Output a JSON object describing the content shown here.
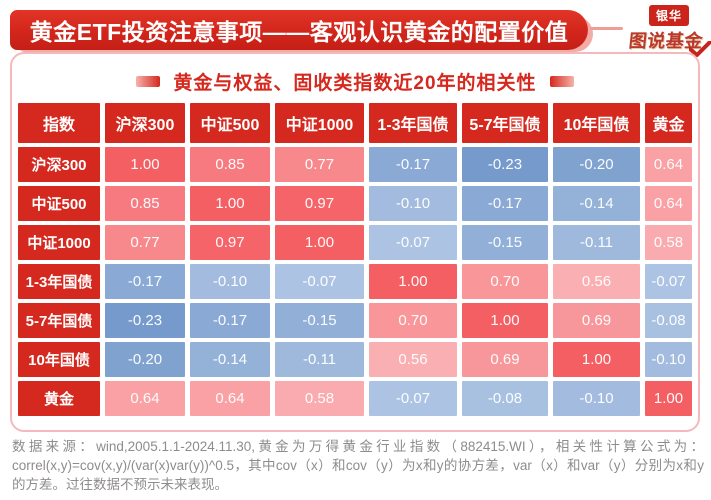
{
  "header": {
    "title": "黄金ETF投资注意事项——客观认识黄金的配置价值",
    "logo": {
      "badge": "银华",
      "name": "图说基金"
    }
  },
  "subtitle": "黄金与权益、固收类指数近20年的相关性",
  "table": {
    "columns": [
      "指数",
      "沪深300",
      "中证500",
      "中证1000",
      "1-3年国债",
      "5-7年国债",
      "10年国债",
      "黄金"
    ],
    "rows": [
      {
        "label": "沪深300",
        "values": [
          "1.00",
          "0.85",
          "0.77",
          "-0.17",
          "-0.23",
          "-0.20",
          "0.64"
        ]
      },
      {
        "label": "中证500",
        "values": [
          "0.85",
          "1.00",
          "0.97",
          "-0.10",
          "-0.17",
          "-0.14",
          "0.64"
        ]
      },
      {
        "label": "中证1000",
        "values": [
          "0.77",
          "0.97",
          "1.00",
          "-0.07",
          "-0.15",
          "-0.11",
          "0.58"
        ]
      },
      {
        "label": "1-3年国债",
        "values": [
          "-0.17",
          "-0.10",
          "-0.07",
          "1.00",
          "0.70",
          "0.56",
          "-0.07"
        ]
      },
      {
        "label": "5-7年国债",
        "values": [
          "-0.23",
          "-0.17",
          "-0.15",
          "0.70",
          "1.00",
          "0.69",
          "-0.08"
        ]
      },
      {
        "label": "10年国债",
        "values": [
          "-0.20",
          "-0.14",
          "-0.11",
          "0.56",
          "0.69",
          "1.00",
          "-0.10"
        ]
      },
      {
        "label": "黄金",
        "values": [
          "0.64",
          "0.64",
          "0.58",
          "-0.07",
          "-0.08",
          "-0.10",
          "1.00"
        ]
      }
    ]
  },
  "footer": "数据来源：wind,2005.1.1-2024.11.30,黄金为万得黄金行业指数（882415.WI），相关性计算公式为：correl(x,y)=cov(x,y)/(var(x)var(y))^0.5，其中cov（x）和cov（y）为x和y的协方差，var（x）和var（y）分别为x和y的方差。过往数据不预示未来表现。",
  "colors": {
    "accent_red": "#d5281e",
    "card_border": "#f4b9bc",
    "positive_high": "#f45f64",
    "positive_low": "#fbbabd",
    "negative_low": "#c5d5ed",
    "negative_high": "#6e95c8",
    "footer_text": "#8f8c8b"
  },
  "chart_data": {
    "type": "heatmap",
    "title": "黄金与权益、固收类指数近20年的相关性",
    "x_categories": [
      "沪深300",
      "中证500",
      "中证1000",
      "1-3年国债",
      "5-7年国债",
      "10年国债",
      "黄金"
    ],
    "y_categories": [
      "沪深300",
      "中证500",
      "中证1000",
      "1-3年国债",
      "5-7年国债",
      "10年国债",
      "黄金"
    ],
    "matrix": [
      [
        1.0,
        0.85,
        0.77,
        -0.17,
        -0.23,
        -0.2,
        0.64
      ],
      [
        0.85,
        1.0,
        0.97,
        -0.1,
        -0.17,
        -0.14,
        0.64
      ],
      [
        0.77,
        0.97,
        1.0,
        -0.07,
        -0.15,
        -0.11,
        0.58
      ],
      [
        -0.17,
        -0.1,
        -0.07,
        1.0,
        0.7,
        0.56,
        -0.07
      ],
      [
        -0.23,
        -0.17,
        -0.15,
        0.7,
        1.0,
        0.69,
        -0.08
      ],
      [
        -0.2,
        -0.14,
        -0.11,
        0.56,
        0.69,
        1.0,
        -0.1
      ],
      [
        0.64,
        0.64,
        0.58,
        -0.07,
        -0.08,
        -0.1,
        1.0
      ]
    ],
    "value_range": [
      -1,
      1
    ],
    "period": "2005.1.1-2024.11.30",
    "legend_position": "none",
    "grid": false
  }
}
